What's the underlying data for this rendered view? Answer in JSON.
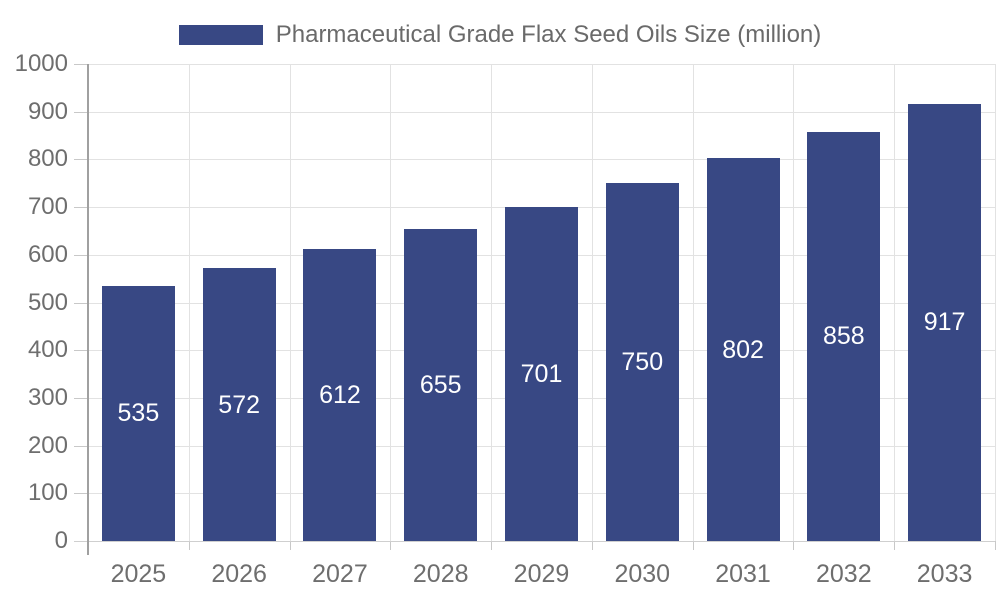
{
  "chart_data": {
    "type": "bar",
    "title": "Pharmaceutical Grade Flax Seed Oils Size (million)",
    "categories": [
      "2025",
      "2026",
      "2027",
      "2028",
      "2029",
      "2030",
      "2031",
      "2032",
      "2033"
    ],
    "values": [
      535,
      572,
      612,
      655,
      701,
      750,
      802,
      858,
      917
    ],
    "yticks": [
      0,
      100,
      200,
      300,
      400,
      500,
      600,
      700,
      800,
      900,
      1000
    ],
    "ylim": [
      0,
      1000
    ],
    "xlabel": "",
    "ylabel": "",
    "legend_position": "top",
    "grid": "on",
    "value_labels": "inside-center",
    "colors": {
      "bar": "#384884",
      "grid": "#e2e2e2",
      "tick": "#c8c8c8",
      "axis_line": "#a0a0a0",
      "axis_bottom": "#cfcfcf",
      "axis_text": "#6e6e6e",
      "legend_text": "#6a6a6a",
      "value_text": "#ffffff",
      "background": "#ffffff"
    }
  }
}
